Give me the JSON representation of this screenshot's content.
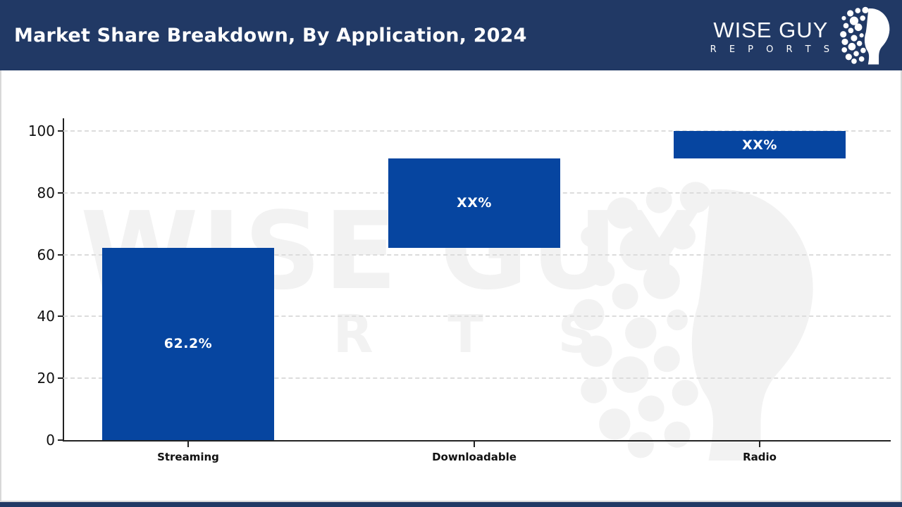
{
  "header": {
    "title": "Market Share Breakdown, By Application, 2024",
    "logo": {
      "line1": "WISE GUY",
      "line2": "R E P O R T S",
      "head_icon": "dotted-head-profile"
    }
  },
  "watermark": {
    "line1": "WISE GUY",
    "line2": "P O R T S",
    "head_icon": "dotted-head-profile"
  },
  "chart_data": {
    "type": "bar",
    "subtype": "waterfall",
    "title": "Market Share Breakdown, By Application, 2024",
    "xlabel": "",
    "ylabel": "",
    "categories": [
      "Streaming",
      "Downloadable",
      "Radio"
    ],
    "segments": [
      {
        "category": "Streaming",
        "start": 0,
        "end": 62.2,
        "value": 62.2,
        "label": "62.2%"
      },
      {
        "category": "Downloadable",
        "start": 62.2,
        "end": 91.1,
        "value": 28.9,
        "label": "XX%"
      },
      {
        "category": "Radio",
        "start": 91.1,
        "end": 100,
        "value": 8.9,
        "label": "XX%"
      }
    ],
    "yticks": [
      0,
      20,
      40,
      60,
      80,
      100
    ],
    "ylim": [
      0,
      105
    ],
    "grid": "horizontal-dashed",
    "legend": "none",
    "bar_color": "#0645a0",
    "bar_label_color": "#ffffff",
    "grid_color": "#dcdcdc",
    "axis_color": "#222222",
    "header_color": "#213965",
    "watermark_color": "#f2f2f2"
  }
}
